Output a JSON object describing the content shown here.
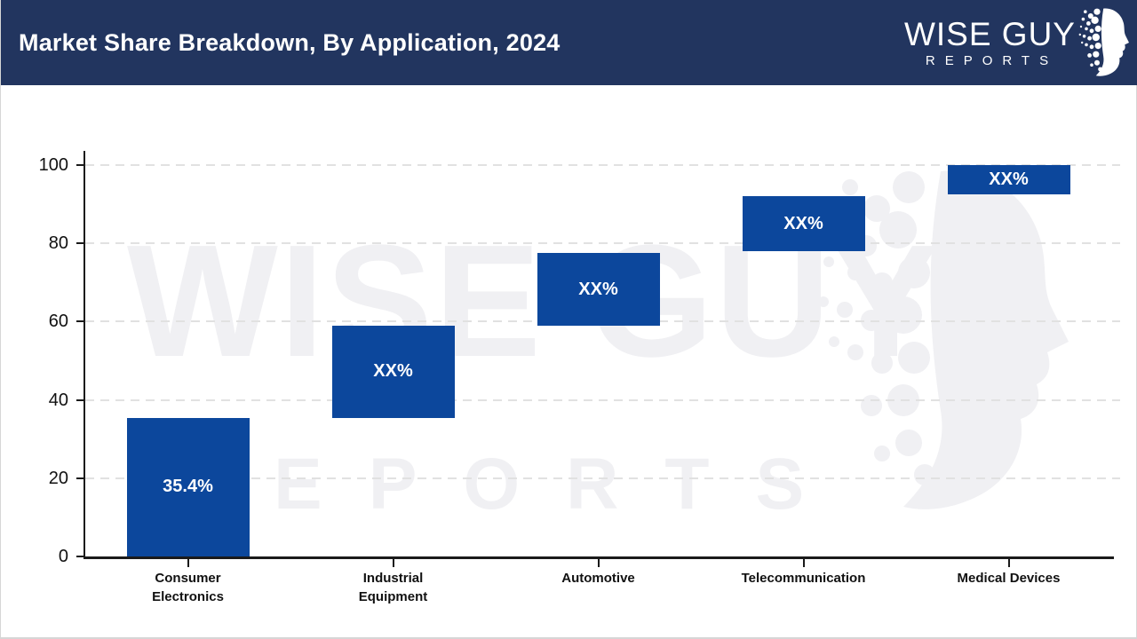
{
  "page": {
    "title": "Market Share Breakdown, By Application, 2024"
  },
  "brand": {
    "logo_line1": "WISE GUY",
    "logo_line2": "REPORTS"
  },
  "watermark": {
    "line1": "WISE GUY",
    "line2": "REPORTS"
  },
  "colors": {
    "header_bg": "#22355f",
    "bar": "#0c479c",
    "bar_label": "#ffffff",
    "grid": "#e1e1e1",
    "axis": "#1a1a1a",
    "watermark": "#f0f0f3"
  },
  "chart_data": {
    "type": "bar",
    "subtype": "waterfall",
    "title": "Market Share Breakdown, By Application, 2024",
    "categories": [
      "Consumer Electronics",
      "Industrial Equipment",
      "Automotive",
      "Telecommunication",
      "Medical Devices"
    ],
    "tick_labels": [
      "Consumer\nElectronics",
      "Industrial\nEquipment",
      "Automotive",
      "Telecommunication",
      "Medical Devices"
    ],
    "segments": [
      {
        "category": "Consumer Electronics",
        "start": 0,
        "end": 35.4,
        "label": "35.4%"
      },
      {
        "category": "Industrial Equipment",
        "start": 35.4,
        "end": 59,
        "label": "XX%"
      },
      {
        "category": "Automotive",
        "start": 59,
        "end": 77.5,
        "label": "XX%"
      },
      {
        "category": "Telecommunication",
        "start": 78,
        "end": 92,
        "label": "XX%"
      },
      {
        "category": "Medical Devices",
        "start": 92.5,
        "end": 100,
        "label": "XX%"
      }
    ],
    "xlabel": "",
    "ylabel": "",
    "ylim": [
      0,
      100
    ],
    "yticks": [
      0,
      20,
      40,
      60,
      80,
      100
    ],
    "grid": "horizontal dashed",
    "legend": "none",
    "bar_color": "#0c479c",
    "label_color": "#ffffff"
  }
}
